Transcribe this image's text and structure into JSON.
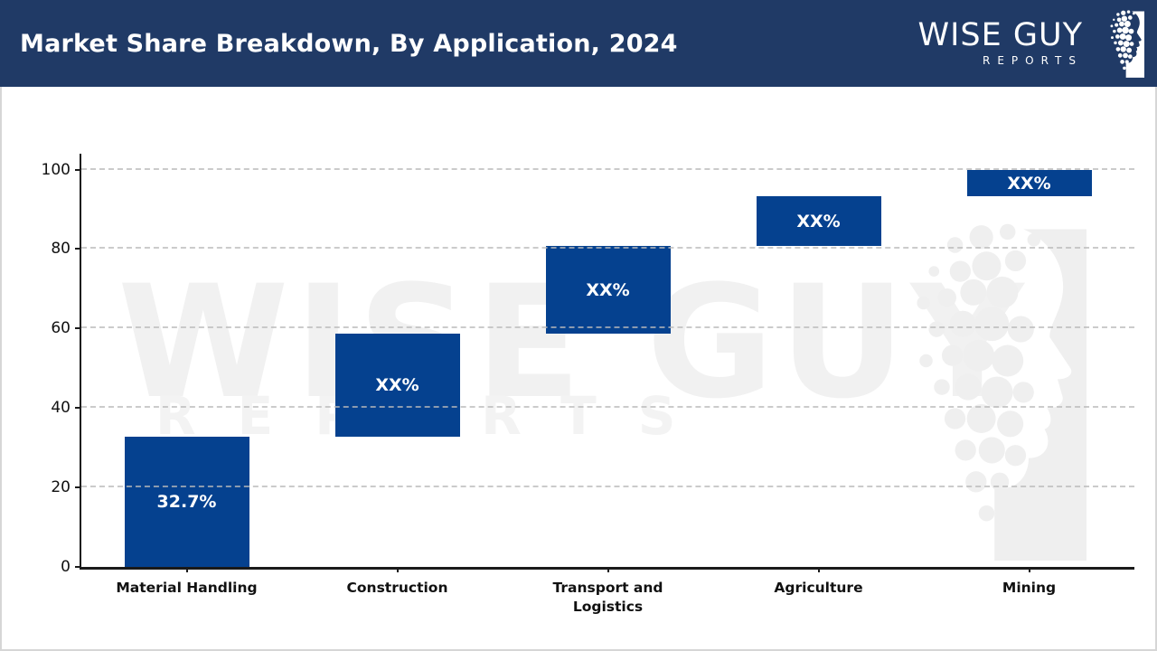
{
  "header": {
    "title": "Market Share Breakdown, By Application, 2024",
    "logo": {
      "line1": "WISE GUY",
      "line2": "REPORTS",
      "icon": "dotted-face-profile"
    }
  },
  "watermark": {
    "line1": "WISE GUY",
    "line2": "REPORTS"
  },
  "colors": {
    "header_bg": "#203a66",
    "bar": "#05418f",
    "bar_label_text": "#ffffff",
    "axis": "#1a1a1a",
    "gridline": "#bcbcbc",
    "watermark": "#f1f1f1",
    "frame_border": "#d6d6d6"
  },
  "chart_data": {
    "type": "bar",
    "variant": "floating-waterfall",
    "title": "Market Share Breakdown, By Application, 2024",
    "xlabel": "",
    "ylabel": "",
    "categories": [
      "Material Handling",
      "Construction",
      "Transport and Logistics",
      "Agriculture",
      "Mining"
    ],
    "segments": [
      {
        "category": "Material Handling",
        "start": 0,
        "end": 32.7,
        "label": "32.7%"
      },
      {
        "category": "Construction",
        "start": 32.7,
        "end": 58.8,
        "label": "XX%"
      },
      {
        "category": "Transport and Logistics",
        "start": 58.8,
        "end": 80.7,
        "label": "XX%"
      },
      {
        "category": "Agriculture",
        "start": 80.7,
        "end": 93.2,
        "label": "XX%"
      },
      {
        "category": "Mining",
        "start": 93.2,
        "end": 100,
        "label": "XX%"
      }
    ],
    "yticks": [
      0,
      20,
      40,
      60,
      80,
      100
    ],
    "ylim": [
      0,
      104
    ],
    "grid": "horizontal dashed, drawn over bars",
    "legend": "none"
  }
}
